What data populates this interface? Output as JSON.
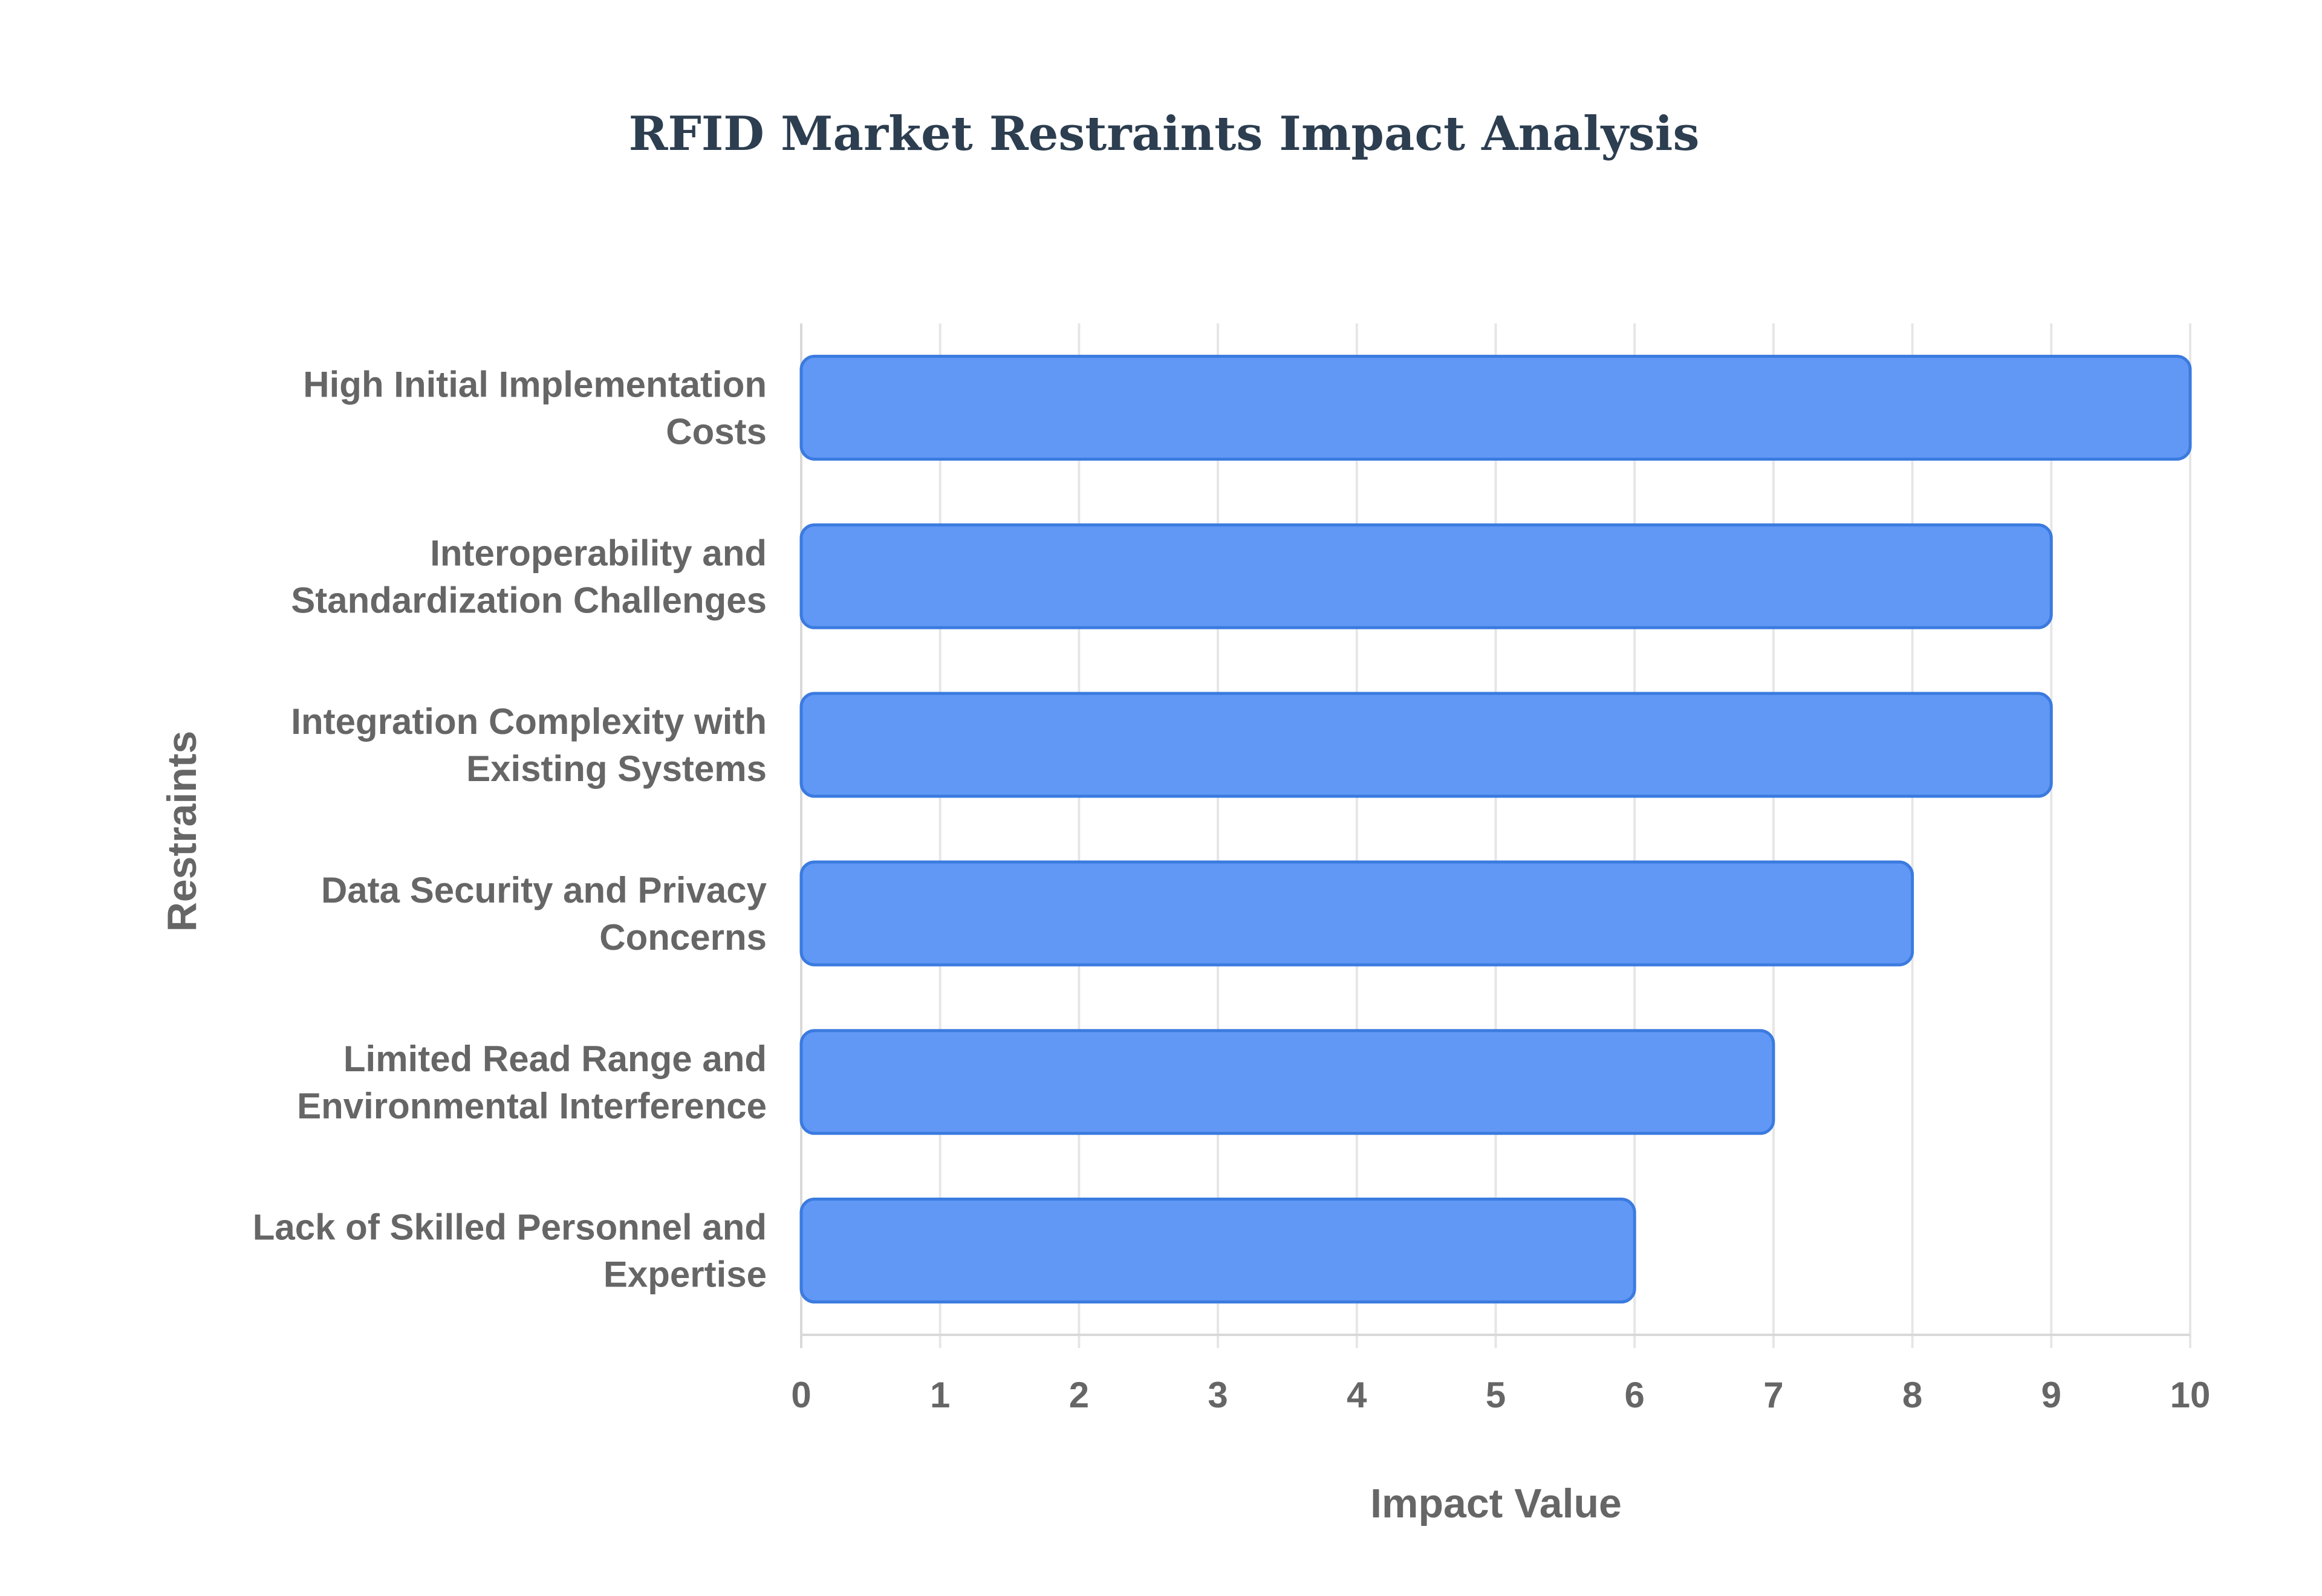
{
  "colors": {
    "title": "#2c3e50",
    "label": "#666666",
    "bar_fill": "#6198f5",
    "bar_stroke": "#3b7be0",
    "grid": "#e6e6e6",
    "axis": "#d9d9d9"
  },
  "chart_data": {
    "type": "bar",
    "orientation": "horizontal",
    "title": "RFID Market Restraints Impact Analysis",
    "xlabel": "Impact Value",
    "ylabel": "Restraints",
    "xlim": [
      0,
      10
    ],
    "xticks": [
      "0",
      "1",
      "2",
      "3",
      "4",
      "5",
      "6",
      "7",
      "8",
      "9",
      "10"
    ],
    "grid": true,
    "categories": [
      [
        "High Initial Implementation",
        "Costs"
      ],
      [
        "Interoperability and",
        "Standardization Challenges"
      ],
      [
        "Integration Complexity with",
        "Existing Systems"
      ],
      [
        "Data Security and Privacy",
        "Concerns"
      ],
      [
        "Limited Read Range and",
        "Environmental Interference"
      ],
      [
        "Lack of Skilled Personnel and",
        "Expertise"
      ]
    ],
    "values": [
      10,
      9,
      9,
      8,
      7,
      6
    ]
  }
}
